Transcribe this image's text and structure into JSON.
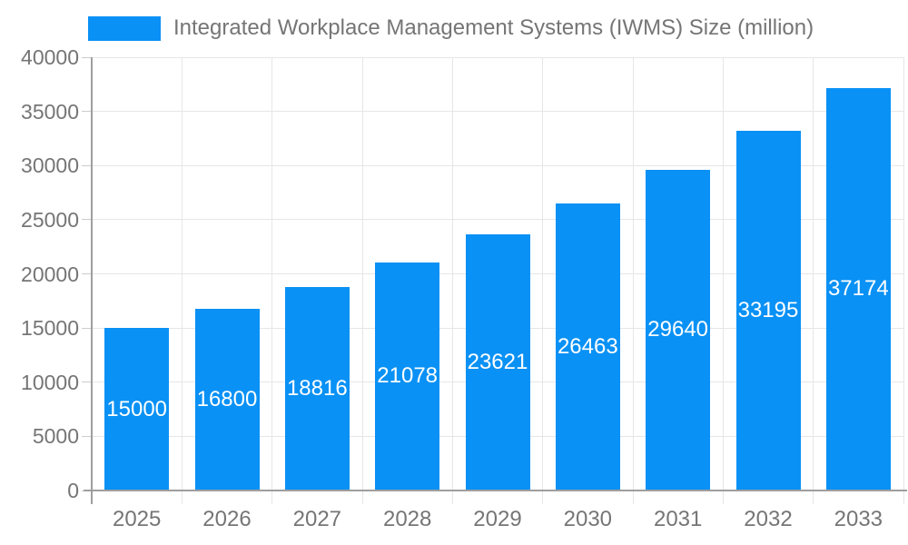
{
  "chart_data": {
    "type": "bar",
    "legend_label": "Integrated Workplace Management Systems (IWMS) Size (million)",
    "legend_position": "top-left",
    "categories": [
      "2025",
      "2026",
      "2027",
      "2028",
      "2029",
      "2030",
      "2031",
      "2032",
      "2033"
    ],
    "values": [
      15000,
      16800,
      18816,
      21078,
      23621,
      26463,
      29640,
      33195,
      37174
    ],
    "value_labels": [
      "15000",
      "16800",
      "18816",
      "21078",
      "23621",
      "26463",
      "29640",
      "33195",
      "37174"
    ],
    "value_label_position": "center",
    "xlabel": "",
    "ylabel": "",
    "ylim": [
      0,
      40000
    ],
    "yticks": [
      0,
      5000,
      10000,
      15000,
      20000,
      25000,
      30000,
      35000,
      40000
    ],
    "ytick_labels": [
      "0",
      "5000",
      "10000",
      "15000",
      "20000",
      "25000",
      "30000",
      "35000",
      "40000"
    ],
    "grid": "both",
    "colors": {
      "bar": "#0991f5",
      "grid": "#e6e6e6",
      "ytick": "#cccccc",
      "axis": "#9e9e9e",
      "text": "#757575",
      "label": "#ffffff",
      "background": "#ffffff"
    }
  }
}
